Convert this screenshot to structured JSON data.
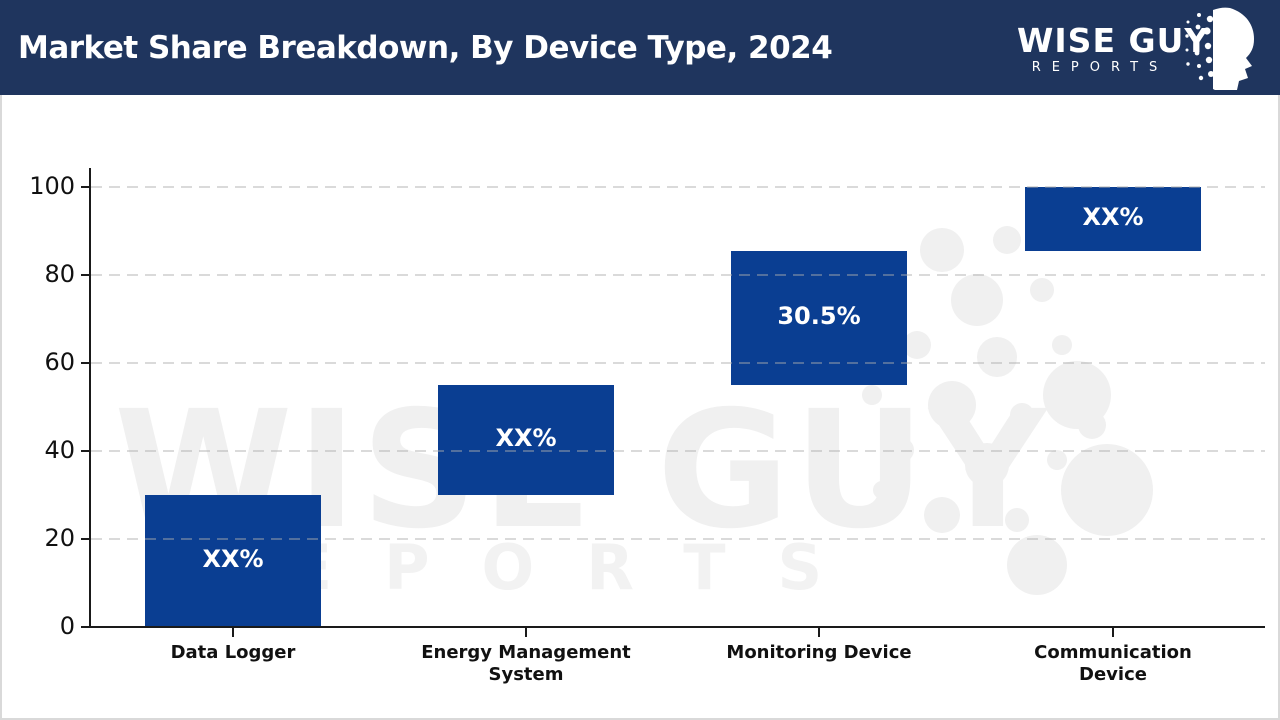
{
  "header": {
    "title": "Market Share Breakdown, By Device Type, 2024",
    "bg_color": "#1f355e",
    "logo": {
      "brand": "WISE GUY",
      "sub": "REPORTS"
    }
  },
  "watermark": {
    "brand": "WISE GUY",
    "sub": "REPORTS"
  },
  "chart_data": {
    "type": "bar",
    "subtype": "floating-waterfall-segments",
    "title": "Market Share Breakdown, By Device Type, 2024",
    "categories": [
      "Data Logger",
      "Energy Management System",
      "Monitoring Device",
      "Communication Device"
    ],
    "category_lines": [
      [
        "Data Logger"
      ],
      [
        "Energy Management",
        "System"
      ],
      [
        "Monitoring Device"
      ],
      [
        "Communication",
        "Device"
      ]
    ],
    "segments": [
      [
        0,
        30
      ],
      [
        30,
        55
      ],
      [
        55,
        85.5
      ],
      [
        85.5,
        100
      ]
    ],
    "segment_sizes": [
      30,
      25,
      30.5,
      14.5
    ],
    "bar_labels": [
      "XX%",
      "XX%",
      "30.5%",
      "XX%"
    ],
    "ylim": [
      0,
      100
    ],
    "yticks": [
      0,
      20,
      40,
      60,
      80,
      100
    ],
    "grid": "horizontal-dashed-over-bars",
    "legend": "none",
    "bar_color": "#0a3e92",
    "bar_label_color": "#ffffff",
    "axis_color": "#1a1a1a"
  }
}
